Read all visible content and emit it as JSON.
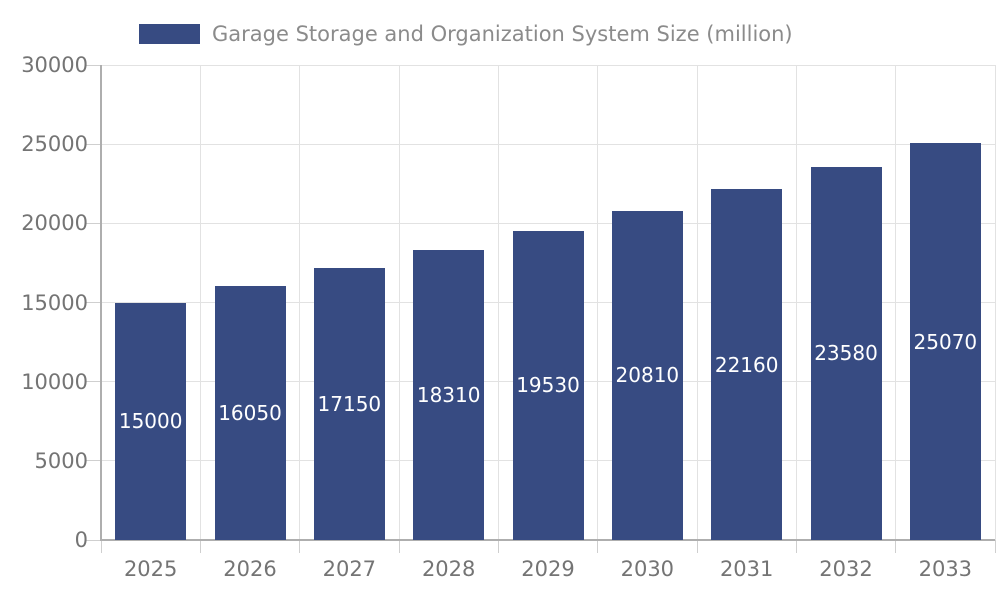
{
  "legend": {
    "label": "Garage Storage and Organization System Size (million)",
    "swatch_color": "#374b82"
  },
  "chart_data": {
    "type": "bar",
    "title": "Garage Storage and Organization System Size (million)",
    "series_name": "Garage Storage and Organization System Size (million)",
    "categories": [
      "2025",
      "2026",
      "2027",
      "2028",
      "2029",
      "2030",
      "2031",
      "2032",
      "2033"
    ],
    "values": [
      15000,
      16050,
      17150,
      18310,
      19530,
      20810,
      22160,
      23580,
      25070
    ],
    "value_labels": [
      "15000",
      "16050",
      "17150",
      "18310",
      "19530",
      "20810",
      "22160",
      "23580",
      "25070"
    ],
    "xlabel": "",
    "ylabel": "",
    "ylim": [
      0,
      30000
    ],
    "ytick_interval": 5000,
    "ytick_labels": [
      "0",
      "5000",
      "10000",
      "15000",
      "20000",
      "25000",
      "30000"
    ],
    "grid": true,
    "legend_position": "top-left",
    "colors": {
      "bar": "#374b82",
      "value_label": "#ffffff",
      "axis_label": "#747474",
      "title": "#8b8b8b",
      "gridline": "#e2e2e2",
      "tick": "#cfcfcf",
      "axis_line": "#aeaeae",
      "background": "#ffffff"
    }
  }
}
